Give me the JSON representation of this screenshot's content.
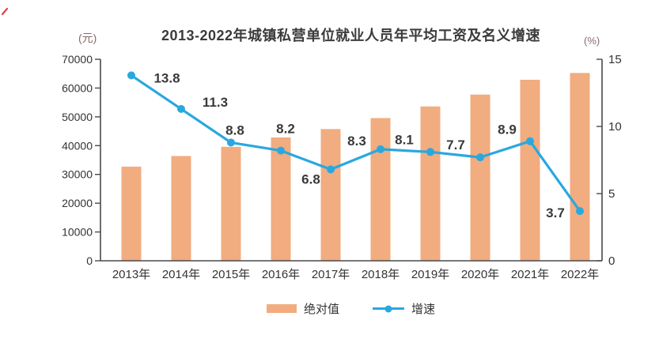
{
  "title": "2013-2022年城镇私营单位就业人员年平均工资及名义增速",
  "left_unit": "(元)",
  "right_unit": "(%)",
  "legend": [
    {
      "label": "绝对值",
      "swatch": "bar-swatch"
    },
    {
      "label": "增速",
      "swatch": "line-swatch"
    }
  ],
  "colors": {
    "bar": "#F1AC80",
    "line": "#29A8DF",
    "axis": "#4A4A4A",
    "tick_text": "#333333",
    "data_label": "#3A3A3A",
    "title_text": "#3B3B3B",
    "unit_text": "#8A6A6A",
    "annotation_mark": "#D94545"
  },
  "chart_data": {
    "type": "combo",
    "title": "2013-2022年城镇私营单位就业人员年平均工资及名义增速",
    "categories": [
      "2013年",
      "2014年",
      "2015年",
      "2016年",
      "2017年",
      "2018年",
      "2019年",
      "2020年",
      "2021年",
      "2022年"
    ],
    "series": [
      {
        "name": "绝对值",
        "type": "bar",
        "axis": "left",
        "unit": "元",
        "values": [
          32706,
          36390,
          39589,
          42833,
          45761,
          49575,
          53604,
          57727,
          62884,
          65237
        ]
      },
      {
        "name": "增速",
        "type": "line",
        "axis": "right",
        "unit": "%",
        "values": [
          13.8,
          11.3,
          8.8,
          8.2,
          6.8,
          8.3,
          8.1,
          7.7,
          8.9,
          3.7
        ],
        "data_labels_shown": true
      }
    ],
    "left_axis": {
      "label": "(元)",
      "range": [
        0,
        70000
      ],
      "ticks": [
        0,
        10000,
        20000,
        30000,
        40000,
        50000,
        60000,
        70000
      ]
    },
    "right_axis": {
      "label": "(%)",
      "range": [
        0,
        15
      ],
      "ticks": [
        0,
        5,
        10,
        15
      ]
    },
    "grid": false,
    "legend_position": "bottom"
  }
}
